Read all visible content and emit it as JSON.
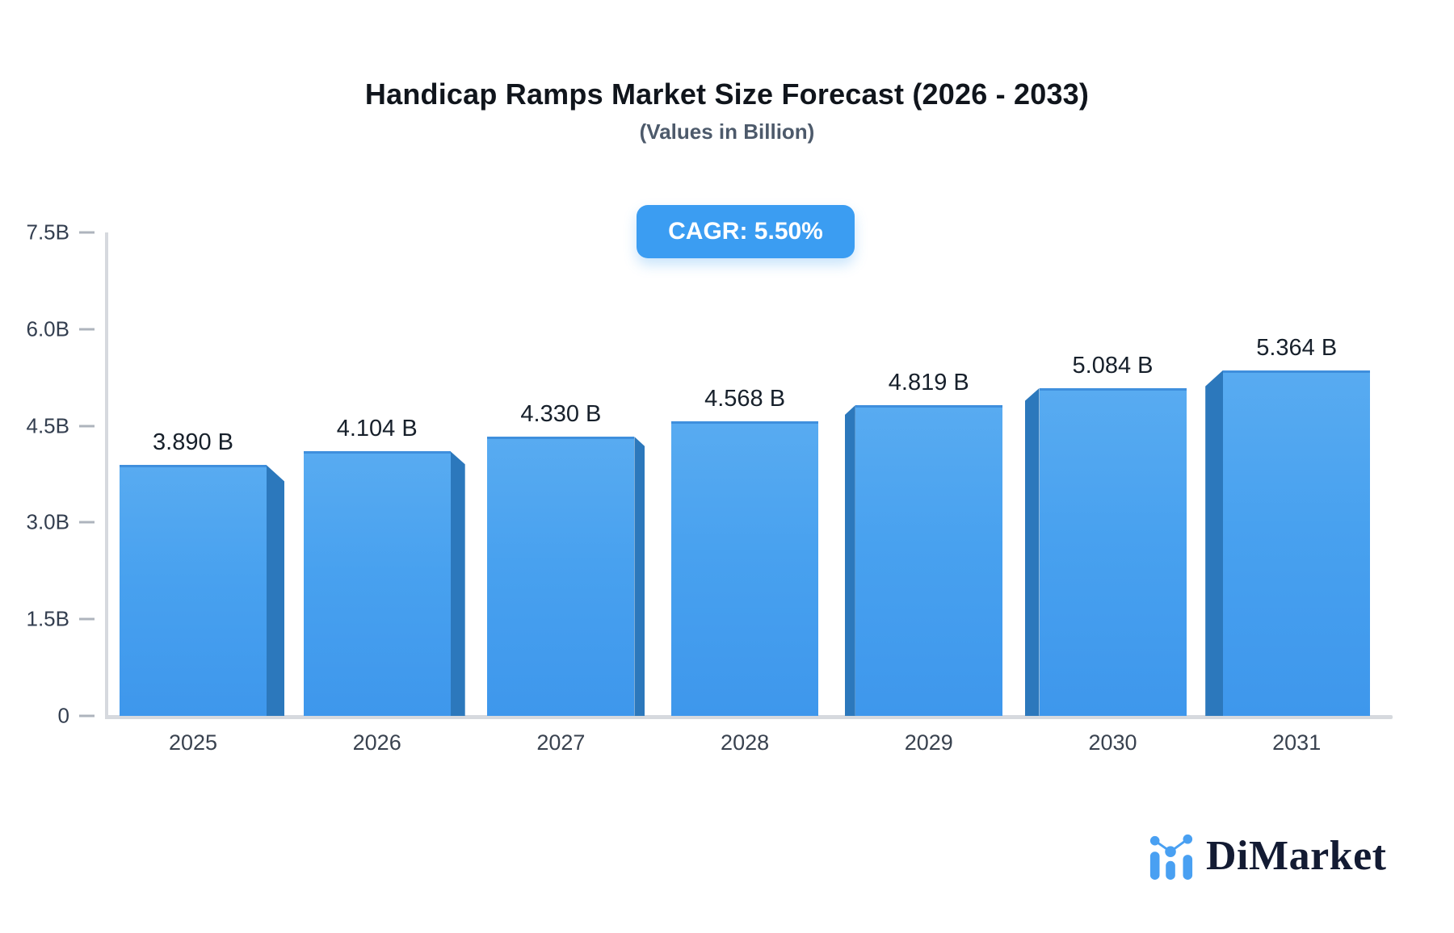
{
  "header": {
    "title": "Handicap Ramps Market Size Forecast (2026 - 2033)",
    "subtitle": "(Values in Billion)",
    "cagr_badge": "CAGR: 5.50%"
  },
  "colors": {
    "badge_bg": "#3b9df2",
    "bar_face": "#48a1ef",
    "bar_side": "#2c78bc",
    "axis_gray": "#d6d9de",
    "logo_blue": "#49a0f2"
  },
  "chart_data": {
    "type": "bar",
    "title": "Handicap Ramps Market Size Forecast (2026 - 2033)",
    "subtitle": "(Values in Billion)",
    "xlabel": "",
    "ylabel": "",
    "categories": [
      "2025",
      "2026",
      "2027",
      "2028",
      "2029",
      "2030",
      "2031"
    ],
    "values": [
      3.89,
      4.104,
      4.33,
      4.568,
      4.819,
      5.084,
      5.364
    ],
    "value_labels": [
      "3.890 B",
      "4.104 B",
      "4.330 B",
      "4.568 B",
      "4.819 B",
      "5.084 B",
      "5.364 B"
    ],
    "ylim": [
      0,
      7.5
    ],
    "ytick_values": [
      0,
      1.5,
      3.0,
      4.5,
      6.0,
      7.5
    ],
    "ytick_labels": [
      "0",
      "1.5B",
      "3.0B",
      "4.5B",
      "6.0B",
      "7.5B"
    ],
    "grid": false,
    "legend": false,
    "annotation": "CAGR: 5.50%"
  },
  "brand": {
    "name": "DiMarket"
  }
}
